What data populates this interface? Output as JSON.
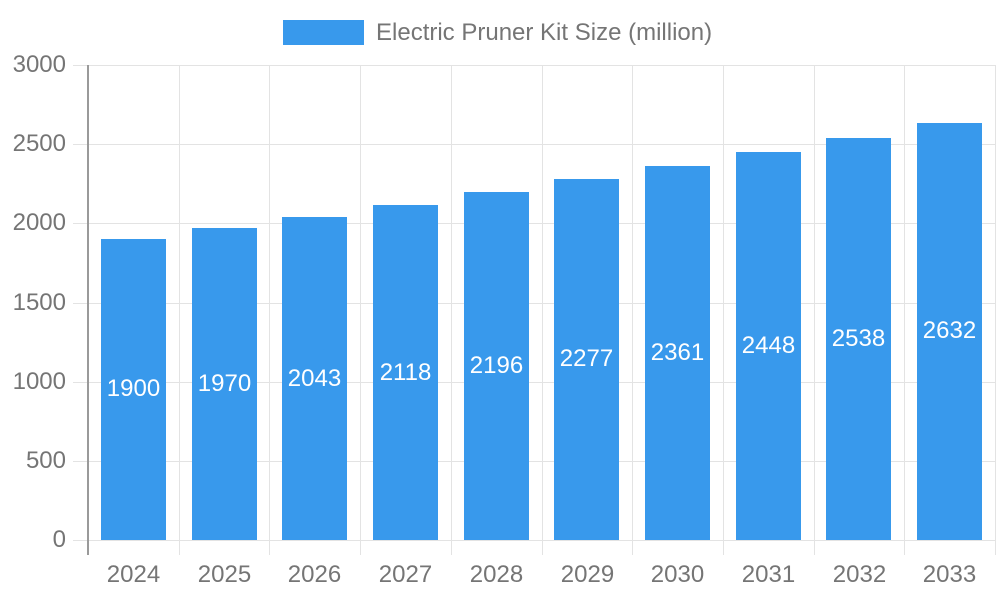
{
  "chart_data": {
    "type": "bar",
    "legend": "Electric Pruner Kit Size (million)",
    "legend_position": "top-center",
    "categories": [
      "2024",
      "2025",
      "2026",
      "2027",
      "2028",
      "2029",
      "2030",
      "2031",
      "2032",
      "2033"
    ],
    "series": [
      {
        "name": "Electric Pruner Kit Size (million)",
        "values": [
          1900,
          1970,
          2043,
          2118,
          2196,
          2277,
          2361,
          2448,
          2538,
          2632
        ]
      }
    ],
    "bar_labels": [
      "1900",
      "1970",
      "2043",
      "2118",
      "2196",
      "2277",
      "2361",
      "2448",
      "2538",
      "2632"
    ],
    "ylim": [
      0,
      3000
    ],
    "yticks": [
      0,
      500,
      1000,
      1500,
      2000,
      2500,
      3000
    ],
    "ytick_labels": [
      "0",
      "500",
      "1000",
      "1500",
      "2000",
      "2500",
      "3000"
    ],
    "grid": true,
    "colors": {
      "bar": "#3899EC",
      "grid": "#E3E3E3",
      "axis": "#9A9A9A",
      "tick_text": "#757575",
      "legend_text": "#757575",
      "bar_label_text": "#FFFFFF",
      "background": "#FFFFFF"
    }
  }
}
